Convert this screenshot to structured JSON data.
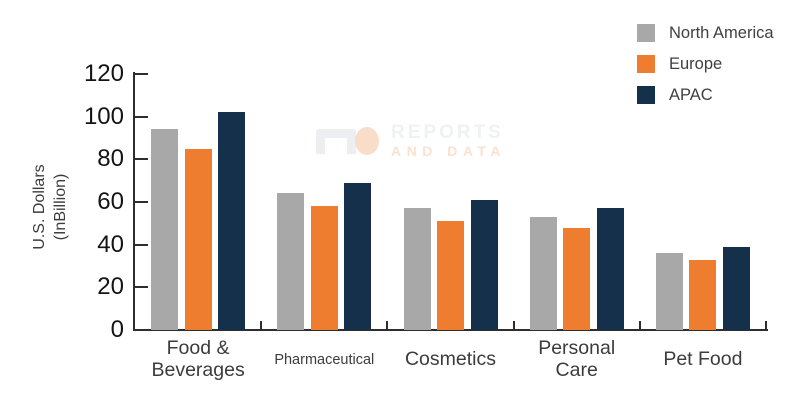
{
  "chart_data": {
    "type": "bar",
    "title": "",
    "categories": [
      "Food &\nBeverages",
      "Pharmaceutical",
      "Cosmetics",
      "Personal\nCare",
      "Pet Food"
    ],
    "series": [
      {
        "name": "North America",
        "color": "#a8a8a8",
        "values": [
          94,
          64,
          57,
          53,
          36
        ]
      },
      {
        "name": "Europe",
        "color": "#ee7d2f",
        "values": [
          85,
          58,
          51,
          48,
          33
        ]
      },
      {
        "name": "APAC",
        "color": "#14304a",
        "values": [
          102,
          69,
          61,
          57,
          39
        ]
      }
    ],
    "ylabel_line1": "U.S. Dollars",
    "ylabel_line2": "(InBillion)",
    "xlabel": "",
    "ylim": [
      0,
      120
    ],
    "y_ticks": [
      0,
      20,
      40,
      60,
      80,
      100,
      120
    ],
    "grid": false,
    "legend_position": "top-right",
    "watermark": {
      "line1": "REPORTS",
      "line2": "AND DATA"
    }
  }
}
